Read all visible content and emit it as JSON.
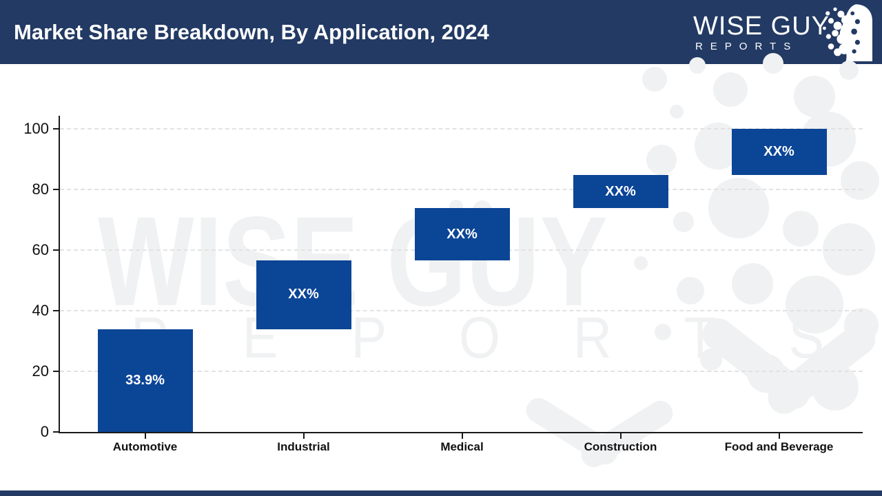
{
  "header": {
    "title": "Market Share Breakdown, By Application, 2024",
    "logo": {
      "line1": "WISE GUY",
      "line2": "REPORTS"
    }
  },
  "watermark": {
    "line1": "WISE GUY",
    "line2": "R E P O R T S"
  },
  "colors": {
    "header_bg": "#223a64",
    "bar_fill": "#0b4596",
    "bar_label": "#ffffff",
    "axis": "#1a1a1a",
    "gridline": "#e2e2e2",
    "watermark": "#f0f1f2",
    "background": "#ffffff"
  },
  "chart_data": {
    "type": "bar",
    "subtype": "waterfall",
    "title": "Market Share Breakdown, By Application, 2024",
    "xlabel": "",
    "ylabel": "",
    "categories": [
      "Automotive",
      "Industrial",
      "Medical",
      "Construction",
      "Food and Beverage"
    ],
    "segments": [
      {
        "category": "Automotive",
        "start": 0,
        "end": 33.9,
        "label": "33.9%"
      },
      {
        "category": "Industrial",
        "start": 33.9,
        "end": 56.5,
        "label": "XX%"
      },
      {
        "category": "Medical",
        "start": 56.5,
        "end": 73.7,
        "label": "XX%"
      },
      {
        "category": "Construction",
        "start": 73.7,
        "end": 84.7,
        "label": "XX%"
      },
      {
        "category": "Food and Beverage",
        "start": 84.7,
        "end": 100,
        "label": "XX%"
      }
    ],
    "yticks": [
      0,
      20,
      40,
      60,
      80,
      100
    ],
    "ylim": [
      0,
      104
    ],
    "grid": "horizontal-dashed",
    "legend": "none"
  }
}
